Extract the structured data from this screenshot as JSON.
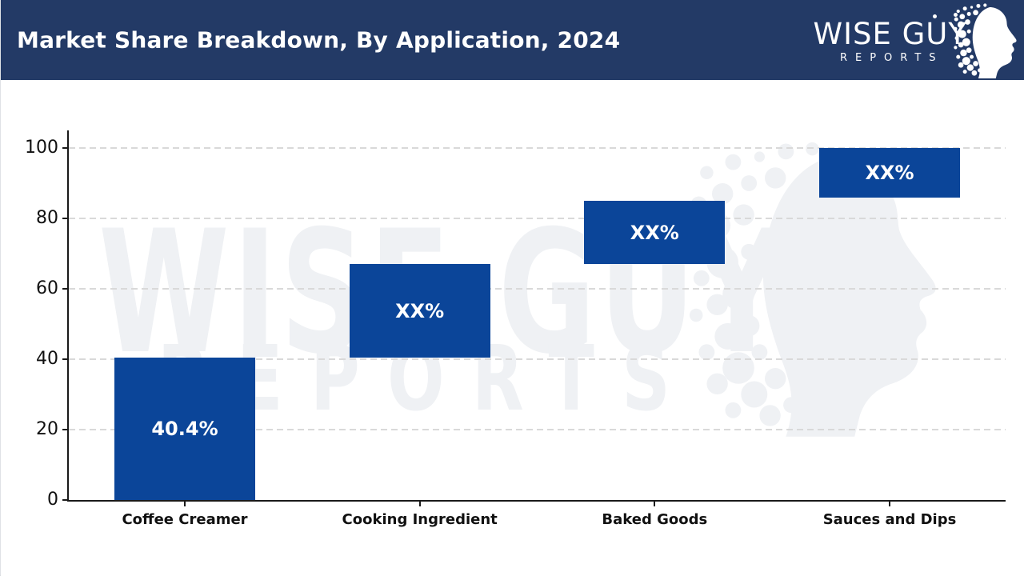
{
  "header": {
    "title": "Market Share Breakdown, By Application, 2024",
    "logo": {
      "wordmark": "WISE GUY",
      "subtext": "REPORTS"
    }
  },
  "watermark": {
    "line1": "WISE GUY",
    "line2": "REPORTS"
  },
  "colors": {
    "header_bg": "#233a66",
    "bar": "#0b4599",
    "grid": "#d9d9d9",
    "axis_text": "#111111",
    "bar_label": "#ffffff",
    "watermark": "#eff1f4"
  },
  "chart_data": {
    "type": "bar",
    "subtype": "waterfall",
    "title": "Market Share Breakdown, By Application, 2024",
    "categories": [
      "Coffee Creamer",
      "Cooking Ingredient",
      "Baked Goods",
      "Sauces and Dips"
    ],
    "bars": [
      {
        "category": "Coffee Creamer",
        "start": 0,
        "end": 40.4,
        "label": "40.4%"
      },
      {
        "category": "Cooking Ingredient",
        "start": 40.4,
        "end": 67,
        "label": "XX%"
      },
      {
        "category": "Baked Goods",
        "start": 67,
        "end": 85,
        "label": "XX%"
      },
      {
        "category": "Sauces and Dips",
        "start": 86,
        "end": 100,
        "label": "XX%"
      }
    ],
    "y_ticks": [
      0,
      20,
      40,
      60,
      80,
      100
    ],
    "ylim": [
      0,
      105
    ],
    "xlabel": "",
    "ylabel": "",
    "grid": "horizontal-dashed",
    "legend": "none"
  }
}
